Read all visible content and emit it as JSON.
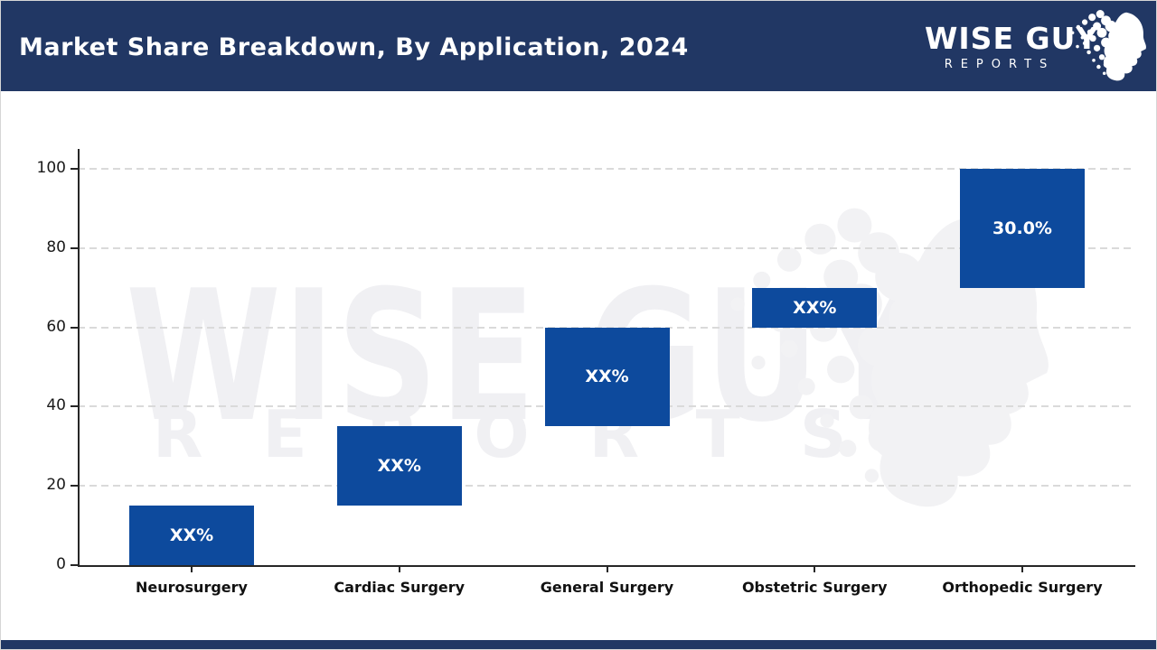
{
  "header": {
    "title": "Market Share Breakdown, By Application, 2024",
    "logo": {
      "line1": "WISE GUY",
      "line2": "REPORTS"
    }
  },
  "watermark": {
    "line1": "WISE GUY",
    "line2": "REPORTS"
  },
  "colors": {
    "header_navy": "#213764",
    "bar_blue": "#0d4a9d",
    "grid_gray": "#dadada",
    "axis_black": "#262626",
    "watermark_gray": "#f0f0f3"
  },
  "chart_data": {
    "type": "bar",
    "subtype": "waterfall",
    "title": "Market Share Breakdown, By Application, 2024",
    "xlabel": "",
    "ylabel": "",
    "categories": [
      "Neurosurgery",
      "Cardiac Surgery",
      "General Surgery",
      "Obstetric Surgery",
      "Orthopedic Surgery"
    ],
    "bars": [
      {
        "category": "Neurosurgery",
        "start": 0,
        "end": 15,
        "value": 15,
        "label": "XX%"
      },
      {
        "category": "Cardiac Surgery",
        "start": 15,
        "end": 35,
        "value": 20,
        "label": "XX%"
      },
      {
        "category": "General Surgery",
        "start": 35,
        "end": 60,
        "value": 25,
        "label": "XX%"
      },
      {
        "category": "Obstetric Surgery",
        "start": 60,
        "end": 70,
        "value": 10,
        "label": "XX%"
      },
      {
        "category": "Orthopedic Surgery",
        "start": 70,
        "end": 100,
        "value": 30,
        "label": "30.0%"
      }
    ],
    "yticks": [
      0,
      20,
      40,
      60,
      80,
      100
    ],
    "ylim": [
      0,
      105
    ],
    "grid": "horizontal-dashed",
    "legend": "none",
    "bar_color": "#0d4a9d",
    "label_color": "#ffffff"
  }
}
